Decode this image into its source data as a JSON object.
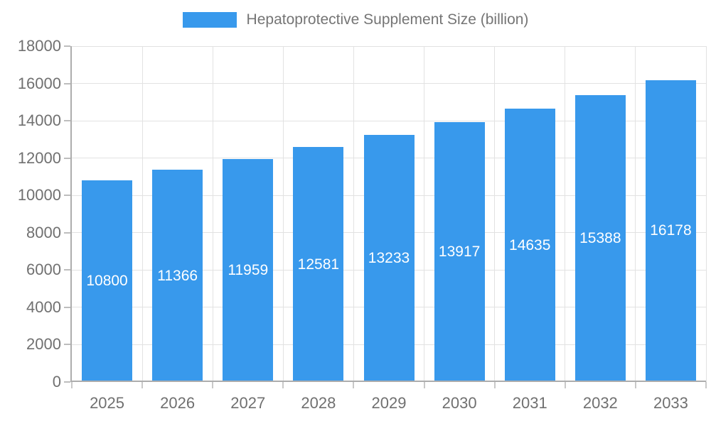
{
  "legend": {
    "label": "Hepatoprotective Supplement Size (billion)"
  },
  "colors": {
    "bar": "#3899EC"
  },
  "chart_data": {
    "type": "bar",
    "title": "Hepatoprotective Supplement Size (billion)",
    "categories": [
      "2025",
      "2026",
      "2027",
      "2028",
      "2029",
      "2030",
      "2031",
      "2032",
      "2033"
    ],
    "values": [
      10800,
      11366,
      11959,
      12581,
      13233,
      13917,
      14635,
      15388,
      16178
    ],
    "series_name": "Hepatoprotective Supplement Size (billion)",
    "xlabel": "",
    "ylabel": "",
    "ylim": [
      0,
      18000
    ],
    "yticks": [
      0,
      2000,
      4000,
      6000,
      8000,
      10000,
      12000,
      14000,
      16000,
      18000
    ],
    "grid": true,
    "legend_position": "top-center",
    "value_labels": "inside-center",
    "bar_color": "#3899EC",
    "value_label_color": "#ffffff"
  }
}
